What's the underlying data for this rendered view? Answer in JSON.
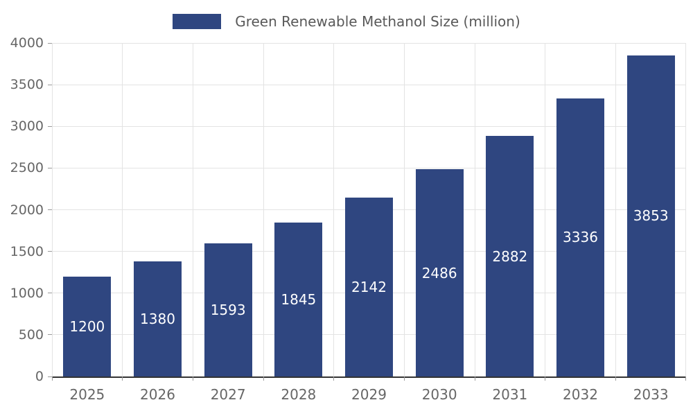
{
  "legend": {
    "label": "Green Renewable Methanol Size (million)"
  },
  "chart_data": {
    "type": "bar",
    "title": "Green Renewable Methanol Size (million)",
    "categories": [
      "2025",
      "2026",
      "2027",
      "2028",
      "2029",
      "2030",
      "2031",
      "2032",
      "2033"
    ],
    "values": [
      1200,
      1380,
      1593,
      1845,
      2142,
      2486,
      2882,
      3336,
      3853
    ],
    "xlabel": "",
    "ylabel": "",
    "ylim": [
      0,
      4000
    ],
    "ytick_step": 500,
    "ytick_labels": [
      "0",
      "500",
      "1000",
      "1500",
      "2000",
      "2500",
      "3000",
      "3500",
      "4000"
    ],
    "grid": true,
    "legend_position": "top",
    "bar_color": "#2F4680",
    "value_label_color": "#ffffff",
    "axis_text_color": "#666666",
    "legend_text_color": "#595959",
    "grid_color": "#e3e3e3",
    "axis_line_color": "#333333",
    "tick_color": "#999999"
  }
}
